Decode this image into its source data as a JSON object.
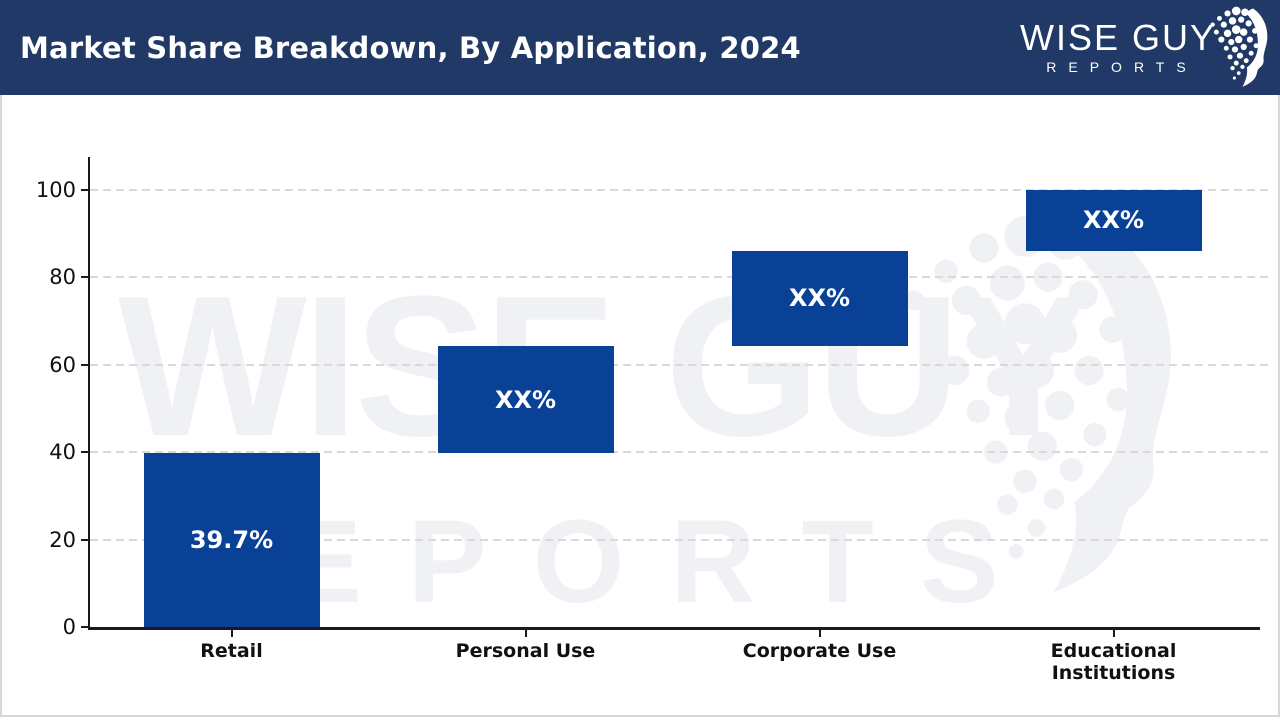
{
  "header": {
    "title": "Market Share Breakdown, By Application, 2024",
    "logo": {
      "wordmark": "WISE GUY",
      "subtext": "REPORTS"
    }
  },
  "watermark": {
    "wordmark": "WISE GUY",
    "subtext": "REPORTS"
  },
  "colors": {
    "header_bg": "#213966",
    "bar_fill": "#094197",
    "bar_label_text": "#ffffff",
    "grid": "#d9d9d9",
    "axis": "#1a1a1a",
    "watermark": "#eff1f4"
  },
  "chart_data": {
    "type": "bar",
    "subtype": "waterfall",
    "title": "Market Share Breakdown, By Application, 2024",
    "unit": "%",
    "categories": [
      "Retail",
      "Personal Use",
      "Corporate Use",
      "Educational\nInstitutions"
    ],
    "segments": [
      {
        "category": "Retail",
        "start": 0,
        "end": 39.7,
        "label": "39.7%"
      },
      {
        "category": "Personal Use",
        "start": 39.7,
        "end": 64.3,
        "label": "XX%"
      },
      {
        "category": "Corporate Use",
        "start": 64.3,
        "end": 86.0,
        "label": "XX%"
      },
      {
        "category": "Educational Institutions",
        "start": 86.0,
        "end": 100.0,
        "label": "XX%"
      }
    ],
    "yticks": [
      0,
      20,
      40,
      60,
      80,
      100
    ],
    "ylim": [
      0,
      108
    ],
    "xlabel": "",
    "ylabel": "",
    "grid": "horizontal-dashed",
    "legend": "none"
  }
}
